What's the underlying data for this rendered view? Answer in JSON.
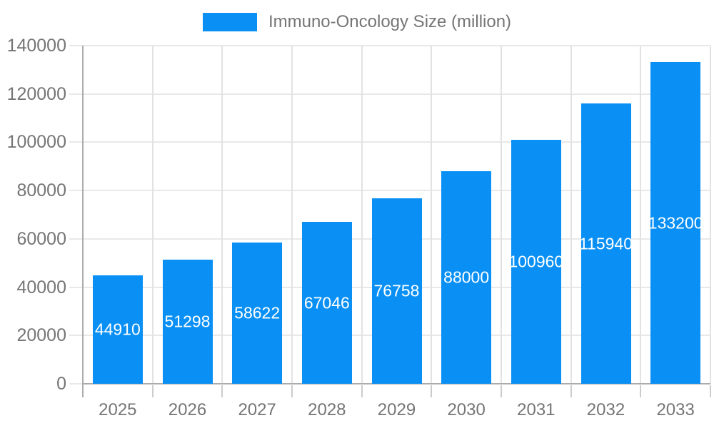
{
  "chart": {
    "bar_color": "#0a90f5",
    "text_color": "#757575",
    "annotation_text_color": "#ffffff",
    "gridline_color": "#e8e8e8",
    "axis_line_color": "#ababab"
  },
  "chart_data": {
    "type": "bar",
    "title": "Immuno-Oncology Size (million)",
    "xlabel": "",
    "ylabel": "",
    "categories": [
      "2025",
      "2026",
      "2027",
      "2028",
      "2029",
      "2030",
      "2031",
      "2032",
      "2033"
    ],
    "series": [
      {
        "name": "Immuno-Oncology Size (million)",
        "values": [
          44910,
          51298,
          58622,
          67046,
          76758,
          88000,
          100960,
          115940,
          133200
        ]
      }
    ],
    "bar_value_labels": [
      "44910",
      "51298",
      "58622",
      "67046",
      "76758",
      "88000",
      "100960",
      "115940",
      "133200"
    ],
    "ylim": [
      0,
      140000
    ],
    "yticks": [
      0,
      20000,
      40000,
      60000,
      80000,
      100000,
      120000,
      140000
    ],
    "grid": true,
    "legend_position": "top-center"
  }
}
